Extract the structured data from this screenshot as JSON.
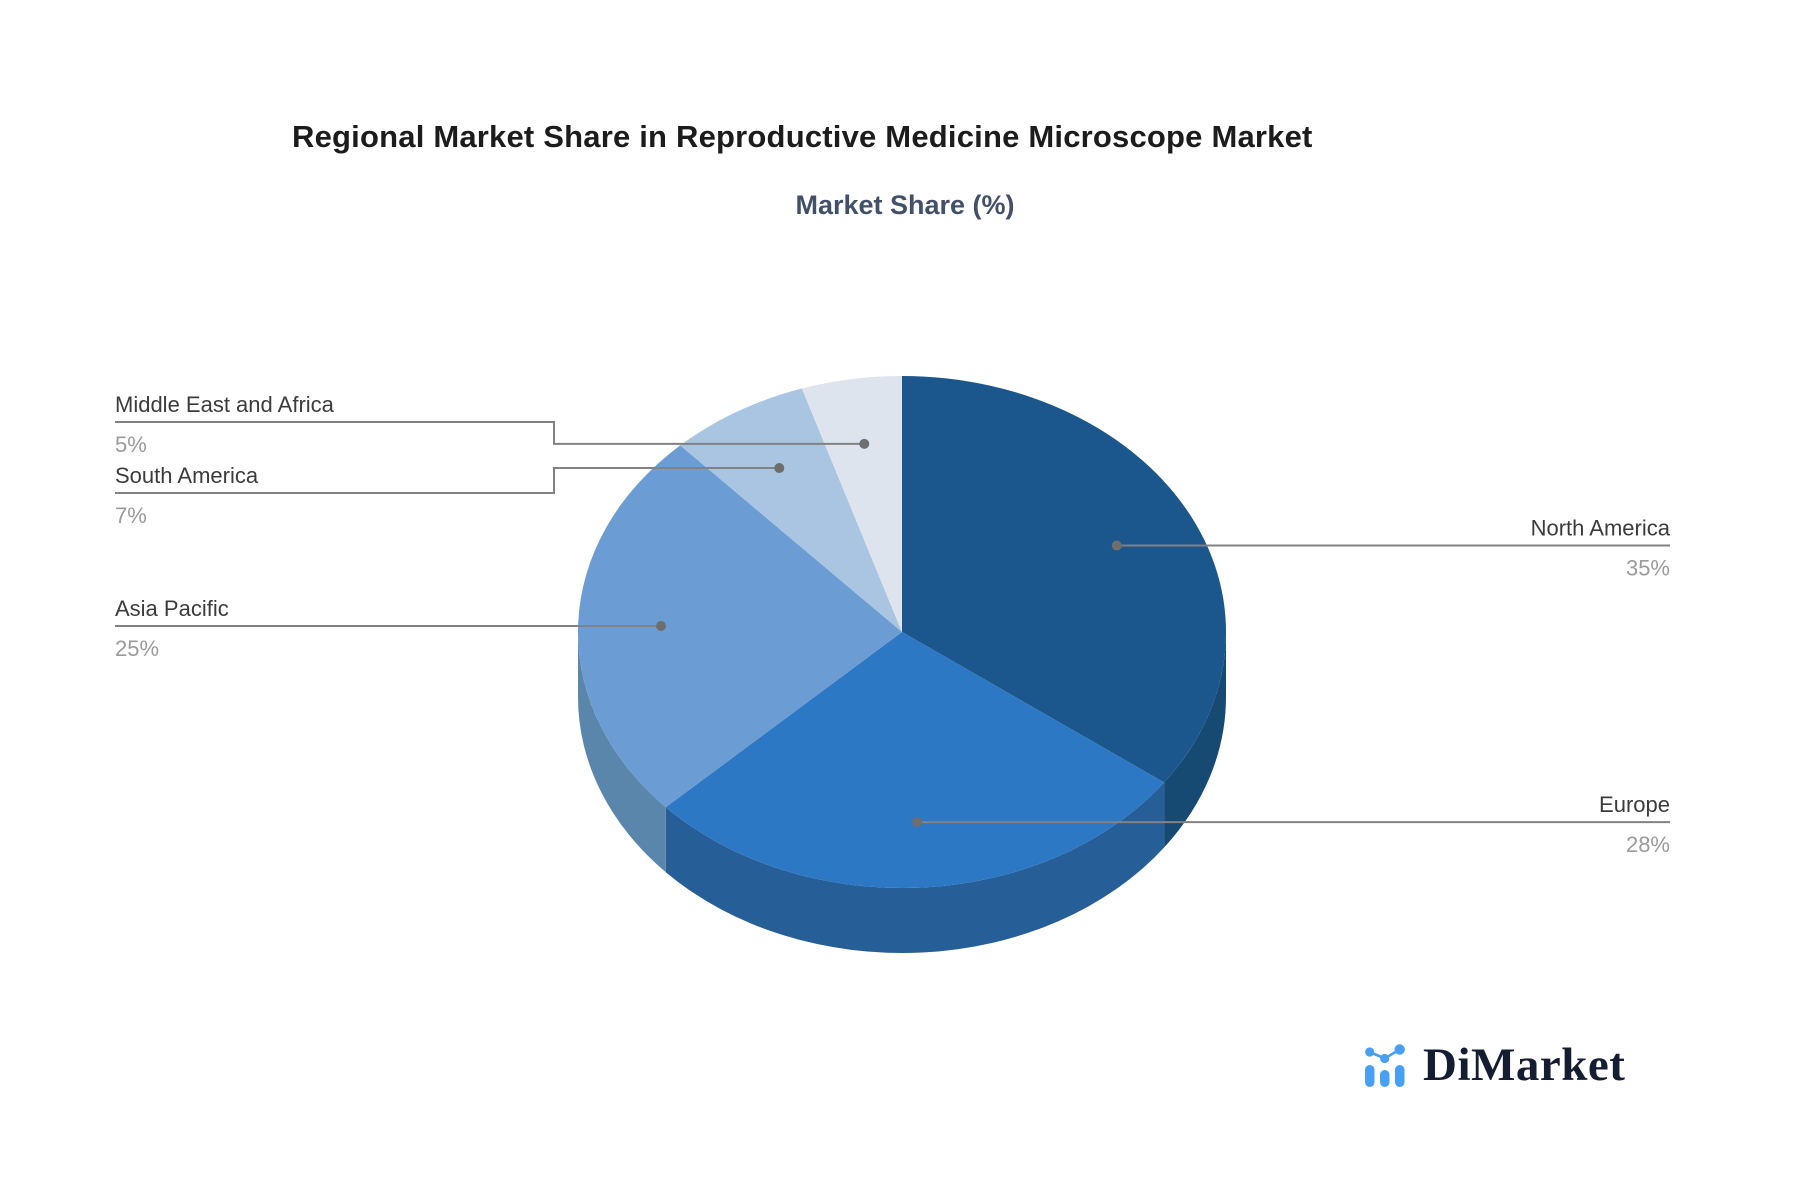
{
  "header": {
    "title": "Regional Market Share in Reproductive Medicine Microscope Market",
    "subtitle": "Market Share (%)"
  },
  "chart_data": {
    "type": "pie",
    "style": "3d-pie",
    "title": "Regional Market Share in Reproductive Medicine Microscope Market",
    "subtitle": "Market Share (%)",
    "unit": "%",
    "direction": "clockwise",
    "start_angle_deg": 0,
    "legend": "none",
    "series": [
      {
        "name": "North America",
        "value": 35,
        "label": "35%",
        "color": "#1b568c",
        "side_color": "#164a73"
      },
      {
        "name": "Europe",
        "value": 28,
        "label": "28%",
        "color": "#2d78c4",
        "side_color": "#265e98"
      },
      {
        "name": "Asia Pacific",
        "value": 25,
        "label": "25%",
        "color": "#6b9cd3",
        "side_color": "#5b86ab"
      },
      {
        "name": "South America",
        "value": 7,
        "label": "7%",
        "color": "#aac5e2",
        "side_color": "#8fadc9"
      },
      {
        "name": "Middle East and Africa",
        "value": 5,
        "label": "5%",
        "color": "#dde4ee",
        "side_color": "#c3cfdd"
      }
    ],
    "leader_line_color": "#828282",
    "leader_dot_color": "#6e6e6e",
    "label_name_color": "#3c3c3c",
    "label_value_color": "#9b9b9b"
  },
  "branding": {
    "logo_text": "DiMarket",
    "text_color": "#141d31",
    "icon_color": "#47a0f4"
  }
}
